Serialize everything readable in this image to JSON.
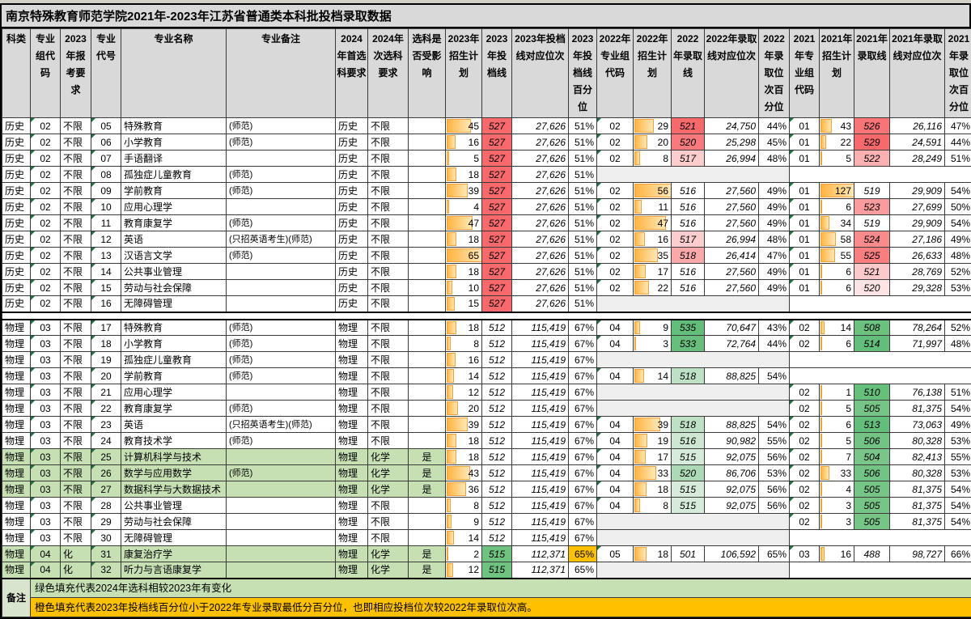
{
  "title": "南京特殊教育师范学院2021年-2023年江苏省普通类本科批投档录取数据",
  "columns": [
    "科类",
    "专业组代码",
    "2023年报考要求",
    "专业代号",
    "专业名称",
    "专业备注",
    "2024年首选科要求",
    "2024年次选科要求",
    "选科是否受影响",
    "2023年招生计划",
    "2023年投档线",
    "2023年投档线对应位次",
    "2023年投档线百分位",
    "2022年专业组代码",
    "2022年招生计划",
    "2022年录取线",
    "2022年录取线对应位次",
    "2022年录取位次百分位",
    "2021年专业组代码",
    "2021年招生计划",
    "2021年录取线",
    "2021年录取线对应位次",
    "2021年录取位次百分位"
  ],
  "notes": {
    "label": "备注",
    "green": "绿色填充代表2024年选科相较2023年有变化",
    "orange": "橙色填充代表2023年投档线百分位小于2022年专业录取最低分百分位，也即相应投档位次较2022年录取位次高。"
  },
  "colors": {
    "page_bg": "#D4D0C8",
    "header_bg": "#D9D9D9",
    "green_row": "#C6E0B4",
    "orange_highlight": "#FFC000",
    "note_label_bg": "#D8E4CE",
    "red_scale_max": "#F8696B",
    "green_scale_max": "#63BE7B",
    "bar_gradient_from": "#FFB441",
    "bar_gradient_to": "#FFE8B8",
    "blank_2022_bg": "#EFEFEF",
    "comment_triangle": "#1E7145"
  },
  "rows": [
    {
      "section": "hist",
      "cat": "历史",
      "grp": "02",
      "req": "不限",
      "code": "05",
      "major": "特殊教育",
      "remark": "(师范)",
      "first": "历史",
      "second": "不限",
      "affect": "",
      "green": false,
      "y23": {
        "plan": 45,
        "line": "527",
        "bg": "#F8696B",
        "rank": "27,626",
        "pct": "51%",
        "pctBg": ""
      },
      "y22": {
        "grp": "02",
        "plan": 29,
        "line": "521",
        "bg": "#F8696B",
        "rank": "24,750",
        "pct": "44%"
      },
      "y21": {
        "grp": "01",
        "plan": 43,
        "line": "526",
        "bg": "#F87476",
        "rank": "26,116",
        "pct": "47%"
      }
    },
    {
      "section": "hist",
      "cat": "历史",
      "grp": "02",
      "req": "不限",
      "code": "06",
      "major": "小学教育",
      "remark": "(师范)",
      "first": "历史",
      "second": "不限",
      "affect": "",
      "green": false,
      "y23": {
        "plan": 16,
        "line": "527",
        "bg": "#F8696B",
        "rank": "27,626",
        "pct": "51%",
        "pctBg": ""
      },
      "y22": {
        "grp": "02",
        "plan": 20,
        "line": "520",
        "bg": "#F87A7C",
        "rank": "25,298",
        "pct": "45%"
      },
      "y21": {
        "grp": "01",
        "plan": 22,
        "line": "529",
        "bg": "#F8696B",
        "rank": "24,591",
        "pct": "44%"
      }
    },
    {
      "section": "hist",
      "cat": "历史",
      "grp": "02",
      "req": "不限",
      "code": "07",
      "major": "手语翻译",
      "remark": "",
      "first": "历史",
      "second": "不限",
      "affect": "",
      "green": false,
      "y23": {
        "plan": 5,
        "line": "527",
        "bg": "#F8696B",
        "rank": "27,626",
        "pct": "51%",
        "pctBg": ""
      },
      "y22": {
        "grp": "02",
        "plan": 8,
        "line": "517",
        "bg": "#FBCDCE",
        "rank": "26,994",
        "pct": "48%"
      },
      "y21": {
        "grp": "01",
        "plan": 5,
        "line": "522",
        "bg": "#FBB0B2",
        "rank": "28,249",
        "pct": "51%"
      }
    },
    {
      "section": "hist",
      "cat": "历史",
      "grp": "02",
      "req": "不限",
      "code": "08",
      "major": "孤独症儿童教育",
      "remark": "(师范)",
      "first": "历史",
      "second": "不限",
      "affect": "",
      "green": false,
      "y23": {
        "plan": 18,
        "line": "527",
        "bg": "#F8696B",
        "rank": "27,626",
        "pct": "51%",
        "pctBg": ""
      },
      "y22": null,
      "y21": null
    },
    {
      "section": "hist",
      "cat": "历史",
      "grp": "02",
      "req": "不限",
      "code": "09",
      "major": "学前教育",
      "remark": "(师范)",
      "first": "历史",
      "second": "不限",
      "affect": "",
      "green": false,
      "y23": {
        "plan": 39,
        "line": "527",
        "bg": "#F8696B",
        "rank": "27,626",
        "pct": "51%",
        "pctBg": ""
      },
      "y22": {
        "grp": "02",
        "plan": 56,
        "line": "516",
        "bg": "",
        "rank": "27,560",
        "pct": "49%"
      },
      "y21": {
        "grp": "01",
        "plan": 127,
        "line": "519",
        "bg": "",
        "rank": "29,909",
        "pct": "54%"
      }
    },
    {
      "section": "hist",
      "cat": "历史",
      "grp": "02",
      "req": "不限",
      "code": "10",
      "major": "应用心理学",
      "remark": "",
      "first": "历史",
      "second": "不限",
      "affect": "",
      "green": false,
      "y23": {
        "plan": 4,
        "line": "527",
        "bg": "#F8696B",
        "rank": "27,626",
        "pct": "51%",
        "pctBg": ""
      },
      "y22": {
        "grp": "02",
        "plan": 11,
        "line": "516",
        "bg": "",
        "rank": "27,560",
        "pct": "49%"
      },
      "y21": {
        "grp": "01",
        "plan": 6,
        "line": "523",
        "bg": "#FA9B9D",
        "rank": "27,699",
        "pct": "50%"
      }
    },
    {
      "section": "hist",
      "cat": "历史",
      "grp": "02",
      "req": "不限",
      "code": "11",
      "major": "教育康复学",
      "remark": "(师范)",
      "first": "历史",
      "second": "不限",
      "affect": "",
      "green": false,
      "y23": {
        "plan": 47,
        "line": "527",
        "bg": "#F8696B",
        "rank": "27,626",
        "pct": "51%",
        "pctBg": ""
      },
      "y22": {
        "grp": "02",
        "plan": 47,
        "line": "516",
        "bg": "",
        "rank": "27,560",
        "pct": "49%"
      },
      "y21": {
        "grp": "01",
        "plan": 34,
        "line": "519",
        "bg": "",
        "rank": "29,909",
        "pct": "54%"
      }
    },
    {
      "section": "hist",
      "cat": "历史",
      "grp": "02",
      "req": "不限",
      "code": "12",
      "major": "英语",
      "remark": "(只招英语考生)(师范)",
      "first": "历史",
      "second": "不限",
      "affect": "",
      "green": false,
      "y23": {
        "plan": 18,
        "line": "527",
        "bg": "#F8696B",
        "rank": "27,626",
        "pct": "51%",
        "pctBg": ""
      },
      "y22": {
        "grp": "02",
        "plan": 16,
        "line": "517",
        "bg": "#FBCDCE",
        "rank": "26,994",
        "pct": "48%"
      },
      "y21": {
        "grp": "01",
        "plan": 58,
        "line": "524",
        "bg": "#F98B8D",
        "rank": "27,186",
        "pct": "49%"
      }
    },
    {
      "section": "hist",
      "cat": "历史",
      "grp": "02",
      "req": "不限",
      "code": "13",
      "major": "汉语言文学",
      "remark": "(师范)",
      "first": "历史",
      "second": "不限",
      "affect": "",
      "green": false,
      "y23": {
        "plan": 65,
        "line": "527",
        "bg": "#F8696B",
        "rank": "27,626",
        "pct": "51%",
        "pctBg": ""
      },
      "y22": {
        "grp": "02",
        "plan": 35,
        "line": "518",
        "bg": "#FAA9AB",
        "rank": "26,414",
        "pct": "47%"
      },
      "y21": {
        "grp": "01",
        "plan": 55,
        "line": "525",
        "bg": "#F97E80",
        "rank": "26,633",
        "pct": "48%"
      }
    },
    {
      "section": "hist",
      "cat": "历史",
      "grp": "02",
      "req": "不限",
      "code": "14",
      "major": "公共事业管理",
      "remark": "",
      "first": "历史",
      "second": "不限",
      "affect": "",
      "green": false,
      "y23": {
        "plan": 18,
        "line": "527",
        "bg": "#F8696B",
        "rank": "27,626",
        "pct": "51%",
        "pctBg": ""
      },
      "y22": {
        "grp": "02",
        "plan": 17,
        "line": "516",
        "bg": "",
        "rank": "27,560",
        "pct": "49%"
      },
      "y21": {
        "grp": "01",
        "plan": 6,
        "line": "521",
        "bg": "#FBC9CA",
        "rank": "28,769",
        "pct": "52%"
      }
    },
    {
      "section": "hist",
      "cat": "历史",
      "grp": "02",
      "req": "不限",
      "code": "15",
      "major": "劳动与社会保障",
      "remark": "",
      "first": "历史",
      "second": "不限",
      "affect": "",
      "green": false,
      "y23": {
        "plan": 10,
        "line": "527",
        "bg": "#F8696B",
        "rank": "27,626",
        "pct": "51%",
        "pctBg": ""
      },
      "y22": {
        "grp": "02",
        "plan": 22,
        "line": "516",
        "bg": "",
        "rank": "27,560",
        "pct": "49%"
      },
      "y21": {
        "grp": "01",
        "plan": 6,
        "line": "520",
        "bg": "#FDE4E4",
        "rank": "29,328",
        "pct": "53%"
      }
    },
    {
      "section": "hist",
      "cat": "历史",
      "grp": "02",
      "req": "不限",
      "code": "16",
      "major": "无障碍管理",
      "remark": "",
      "first": "历史",
      "second": "不限",
      "affect": "",
      "green": false,
      "y23": {
        "plan": 15,
        "line": "527",
        "bg": "#F8696B",
        "rank": "27,626",
        "pct": "51%",
        "pctBg": ""
      },
      "y22": null,
      "y21": null
    },
    {
      "section": "phys",
      "cat": "物理",
      "grp": "03",
      "req": "不限",
      "code": "17",
      "major": "特殊教育",
      "remark": "(师范)",
      "first": "物理",
      "second": "不限",
      "affect": "",
      "green": false,
      "y23": {
        "plan": 18,
        "line": "512",
        "bg": "",
        "rank": "115,419",
        "pct": "67%",
        "pctBg": ""
      },
      "y22": {
        "grp": "04",
        "plan": 9,
        "line": "535",
        "bg": "#63BE7B",
        "rank": "70,647",
        "pct": "43%"
      },
      "y21": {
        "grp": "02",
        "plan": 14,
        "line": "508",
        "bg": "#6CC17F",
        "rank": "78,264",
        "pct": "52%"
      }
    },
    {
      "section": "phys",
      "cat": "物理",
      "grp": "03",
      "req": "不限",
      "code": "18",
      "major": "小学教育",
      "remark": "(师范)",
      "first": "物理",
      "second": "不限",
      "affect": "",
      "green": false,
      "y23": {
        "plan": 8,
        "line": "512",
        "bg": "",
        "rank": "115,419",
        "pct": "67%",
        "pctBg": ""
      },
      "y22": {
        "grp": "04",
        "plan": 3,
        "line": "533",
        "bg": "#68BF7D",
        "rank": "72,764",
        "pct": "44%"
      },
      "y21": {
        "grp": "02",
        "plan": 6,
        "line": "514",
        "bg": "#63BE7B",
        "rank": "71,997",
        "pct": "48%"
      }
    },
    {
      "section": "phys",
      "cat": "物理",
      "grp": "03",
      "req": "不限",
      "code": "19",
      "major": "孤独症儿童教育",
      "remark": "(师范)",
      "first": "物理",
      "second": "不限",
      "affect": "",
      "green": false,
      "y23": {
        "plan": 16,
        "line": "512",
        "bg": "",
        "rank": "115,419",
        "pct": "67%",
        "pctBg": ""
      },
      "y22": null,
      "y21": null
    },
    {
      "section": "phys",
      "cat": "物理",
      "grp": "03",
      "req": "不限",
      "code": "20",
      "major": "学前教育",
      "remark": "(师范)",
      "first": "物理",
      "second": "不限",
      "affect": "",
      "green": false,
      "y23": {
        "plan": 14,
        "line": "512",
        "bg": "",
        "rank": "115,419",
        "pct": "67%",
        "pctBg": ""
      },
      "y22": {
        "grp": "04",
        "plan": 14,
        "line": "518",
        "bg": "#BEE1C5",
        "rank": "88,825",
        "pct": "54%"
      },
      "y21": null
    },
    {
      "section": "phys",
      "cat": "物理",
      "grp": "03",
      "req": "不限",
      "code": "21",
      "major": "应用心理学",
      "remark": "",
      "first": "物理",
      "second": "不限",
      "affect": "",
      "green": false,
      "y23": {
        "plan": 12,
        "line": "512",
        "bg": "",
        "rank": "115,419",
        "pct": "67%",
        "pctBg": ""
      },
      "y22": null,
      "y21": {
        "grp": "02",
        "plan": 1,
        "line": "510",
        "bg": "#66BF7B",
        "rank": "76,138",
        "pct": "51%"
      }
    },
    {
      "section": "phys",
      "cat": "物理",
      "grp": "03",
      "req": "不限",
      "code": "22",
      "major": "教育康复学",
      "remark": "(师范)",
      "first": "物理",
      "second": "不限",
      "affect": "",
      "green": false,
      "y23": {
        "plan": 20,
        "line": "512",
        "bg": "",
        "rank": "115,419",
        "pct": "67%",
        "pctBg": ""
      },
      "y22": null,
      "y21": {
        "grp": "02",
        "plan": 5,
        "line": "505",
        "bg": "#77C487",
        "rank": "81,375",
        "pct": "54%"
      }
    },
    {
      "section": "phys",
      "cat": "物理",
      "grp": "03",
      "req": "不限",
      "code": "23",
      "major": "英语",
      "remark": "(只招英语考生)(师范)",
      "first": "物理",
      "second": "不限",
      "affect": "",
      "green": false,
      "y23": {
        "plan": 39,
        "line": "512",
        "bg": "",
        "rank": "115,419",
        "pct": "67%",
        "pctBg": ""
      },
      "y22": {
        "grp": "04",
        "plan": 39,
        "line": "518",
        "bg": "#BEE1C5",
        "rank": "88,825",
        "pct": "54%"
      },
      "y21": {
        "grp": "02",
        "plan": 6,
        "line": "513",
        "bg": "#63BE7B",
        "rank": "73,063",
        "pct": "49%"
      }
    },
    {
      "section": "phys",
      "cat": "物理",
      "grp": "03",
      "req": "不限",
      "code": "24",
      "major": "教育技术学",
      "remark": "(师范)",
      "first": "物理",
      "second": "不限",
      "affect": "",
      "green": false,
      "y23": {
        "plan": 18,
        "line": "512",
        "bg": "",
        "rank": "115,419",
        "pct": "67%",
        "pctBg": ""
      },
      "y22": {
        "grp": "04",
        "plan": 19,
        "line": "516",
        "bg": "#CDE7D2",
        "rank": "90,982",
        "pct": "55%"
      },
      "y21": {
        "grp": "02",
        "plan": 5,
        "line": "506",
        "bg": "#73C384",
        "rank": "80,328",
        "pct": "53%"
      }
    },
    {
      "section": "phys",
      "cat": "物理",
      "grp": "03",
      "req": "不限",
      "code": "25",
      "major": "计算机科学与技术",
      "remark": "",
      "first": "物理",
      "second": "化学",
      "affect": "是",
      "green": true,
      "y23": {
        "plan": 18,
        "line": "512",
        "bg": "",
        "rank": "115,419",
        "pct": "67%",
        "pctBg": ""
      },
      "y22": {
        "grp": "04",
        "plan": 17,
        "line": "515",
        "bg": "#D6EBDA",
        "rank": "92,075",
        "pct": "56%"
      },
      "y21": {
        "grp": "02",
        "plan": 7,
        "line": "504",
        "bg": "#7AC58A",
        "rank": "82,413",
        "pct": "55%"
      }
    },
    {
      "section": "phys",
      "cat": "物理",
      "grp": "03",
      "req": "不限",
      "code": "26",
      "major": "数学与应用数学",
      "remark": "(师范)",
      "first": "物理",
      "second": "化学",
      "affect": "是",
      "green": true,
      "y23": {
        "plan": 43,
        "line": "512",
        "bg": "",
        "rank": "115,419",
        "pct": "67%",
        "pctBg": ""
      },
      "y22": {
        "grp": "04",
        "plan": 33,
        "line": "520",
        "bg": "#ACDAB6",
        "rank": "86,706",
        "pct": "53%"
      },
      "y21": {
        "grp": "02",
        "plan": 33,
        "line": "506",
        "bg": "#73C384",
        "rank": "80,328",
        "pct": "53%"
      }
    },
    {
      "section": "phys",
      "cat": "物理",
      "grp": "03",
      "req": "不限",
      "code": "27",
      "major": "数据科学与大数据技术",
      "remark": "",
      "first": "物理",
      "second": "化学",
      "affect": "是",
      "green": true,
      "y23": {
        "plan": 36,
        "line": "512",
        "bg": "",
        "rank": "115,419",
        "pct": "67%",
        "pctBg": ""
      },
      "y22": {
        "grp": "04",
        "plan": 18,
        "line": "515",
        "bg": "#D6EBDA",
        "rank": "92,075",
        "pct": "56%"
      },
      "y21": {
        "grp": "02",
        "plan": 4,
        "line": "505",
        "bg": "#77C487",
        "rank": "81,375",
        "pct": "54%"
      }
    },
    {
      "section": "phys",
      "cat": "物理",
      "grp": "03",
      "req": "不限",
      "code": "28",
      "major": "公共事业管理",
      "remark": "",
      "first": "物理",
      "second": "不限",
      "affect": "",
      "green": false,
      "y23": {
        "plan": 8,
        "line": "512",
        "bg": "",
        "rank": "115,419",
        "pct": "67%",
        "pctBg": ""
      },
      "y22": {
        "grp": "04",
        "plan": 8,
        "line": "515",
        "bg": "#D6EBDA",
        "rank": "92,075",
        "pct": "56%"
      },
      "y21": {
        "grp": "02",
        "plan": 3,
        "line": "505",
        "bg": "#77C487",
        "rank": "81,375",
        "pct": "54%"
      }
    },
    {
      "section": "phys",
      "cat": "物理",
      "grp": "03",
      "req": "不限",
      "code": "29",
      "major": "劳动与社会保障",
      "remark": "",
      "first": "物理",
      "second": "不限",
      "affect": "",
      "green": false,
      "y23": {
        "plan": 9,
        "line": "512",
        "bg": "",
        "rank": "115,419",
        "pct": "67%",
        "pctBg": ""
      },
      "y22": null,
      "y21": {
        "grp": "02",
        "plan": 3,
        "line": "505",
        "bg": "#77C487",
        "rank": "81,375",
        "pct": "54%"
      }
    },
    {
      "section": "phys",
      "cat": "物理",
      "grp": "03",
      "req": "不限",
      "code": "30",
      "major": "无障碍管理",
      "remark": "",
      "first": "物理",
      "second": "不限",
      "affect": "",
      "green": false,
      "y23": {
        "plan": 14,
        "line": "512",
        "bg": "",
        "rank": "115,419",
        "pct": "67%",
        "pctBg": ""
      },
      "y22": null,
      "y21": null
    },
    {
      "section": "phys",
      "cat": "物理",
      "grp": "04",
      "req": "化",
      "code": "31",
      "major": "康复治疗学",
      "remark": "",
      "first": "物理",
      "second": "化学",
      "affect": "是",
      "green": true,
      "y23": {
        "plan": 2,
        "line": "515",
        "bg": "#6FC280",
        "rank": "112,371",
        "pct": "65%",
        "pctBg": "#FFC000"
      },
      "y22": {
        "grp": "05",
        "plan": 18,
        "line": "501",
        "bg": "",
        "rank": "106,592",
        "pct": "65%"
      },
      "y21": {
        "grp": "03",
        "plan": 16,
        "line": "488",
        "bg": "",
        "rank": "98,727",
        "pct": "66%"
      }
    },
    {
      "section": "phys",
      "cat": "物理",
      "grp": "04",
      "req": "化",
      "code": "32",
      "major": "听力与言语康复学",
      "remark": "",
      "first": "物理",
      "second": "化学",
      "affect": "是",
      "green": true,
      "y23": {
        "plan": 12,
        "line": "515",
        "bg": "#6FC280",
        "rank": "112,371",
        "pct": "65%",
        "pctBg": ""
      },
      "y22": null,
      "y21": null
    }
  ]
}
